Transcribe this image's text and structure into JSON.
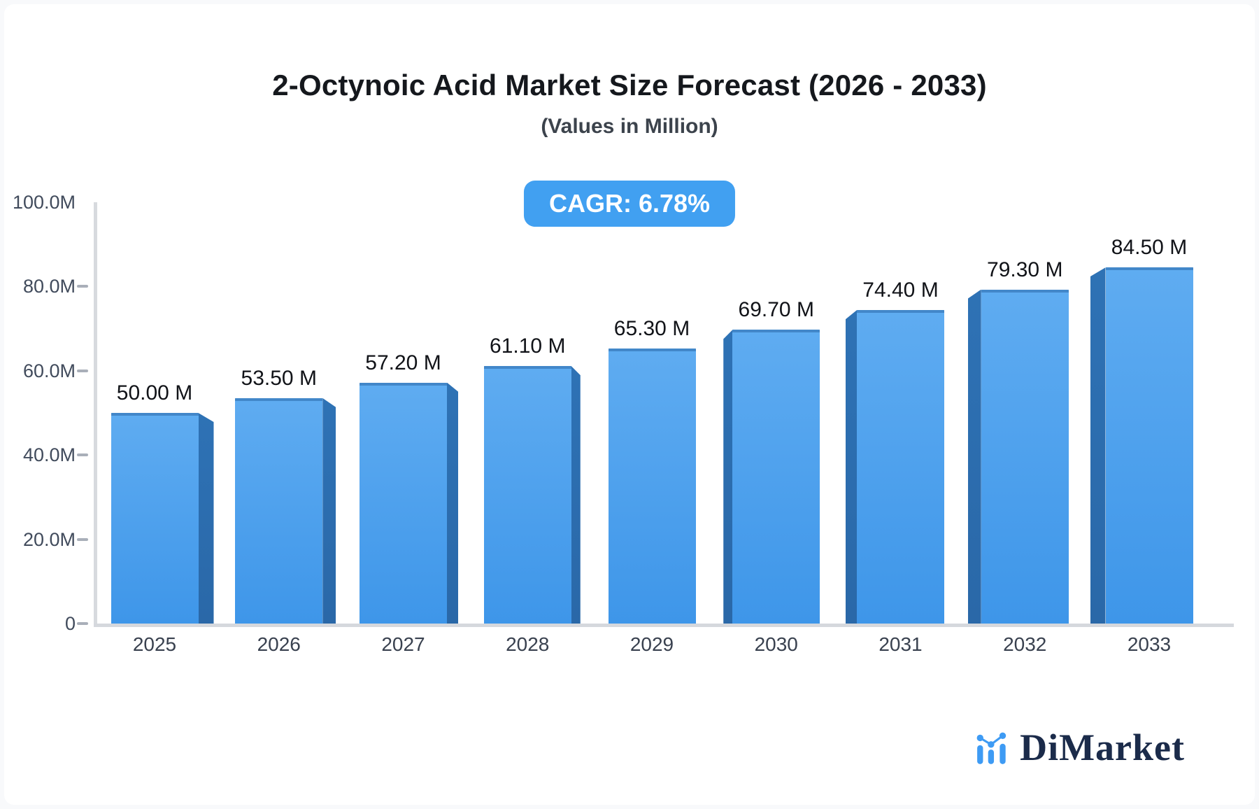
{
  "header": {
    "title": "2-Octynoic Acid Market Size Forecast (2026 - 2033)",
    "subtitle": "(Values in Million)",
    "cagr_badge": "CAGR: 6.78%"
  },
  "chart_data": {
    "type": "bar",
    "title": "2-Octynoic Acid Market Size Forecast (2026 - 2033)",
    "subtitle": "(Values in Million)",
    "categories": [
      "2025",
      "2026",
      "2027",
      "2028",
      "2029",
      "2030",
      "2031",
      "2032",
      "2033"
    ],
    "values": [
      50.0,
      53.5,
      57.2,
      61.1,
      65.3,
      69.7,
      74.4,
      79.3,
      84.5
    ],
    "value_labels": [
      "50.00 M",
      "53.50 M",
      "57.20 M",
      "61.10 M",
      "65.30 M",
      "69.70 M",
      "74.40 M",
      "79.30 M",
      "84.50 M"
    ],
    "y_tick_labels": [
      "100.0M",
      "80.0M",
      "60.0M",
      "40.0M",
      "20.0M",
      "0"
    ],
    "ylim": [
      0,
      100
    ],
    "xlabel": "",
    "ylabel": "",
    "grid": "off",
    "legend": "none",
    "cagr": "6.78%"
  },
  "footer": {
    "logo_text": "DiMarket",
    "logo_icon": "bar-chart-logo-icon"
  },
  "colors": {
    "accent": "#41a0f1",
    "bar_front_top": "#5facf1",
    "bar_front_bottom": "#3e96e9",
    "bar_side": "#2e72b5",
    "bar_side_dark": "#2a68a8",
    "axis_line": "#d7dade",
    "logo_blue": "#3e9bf4",
    "logo_navy": "#1b2b4a"
  }
}
